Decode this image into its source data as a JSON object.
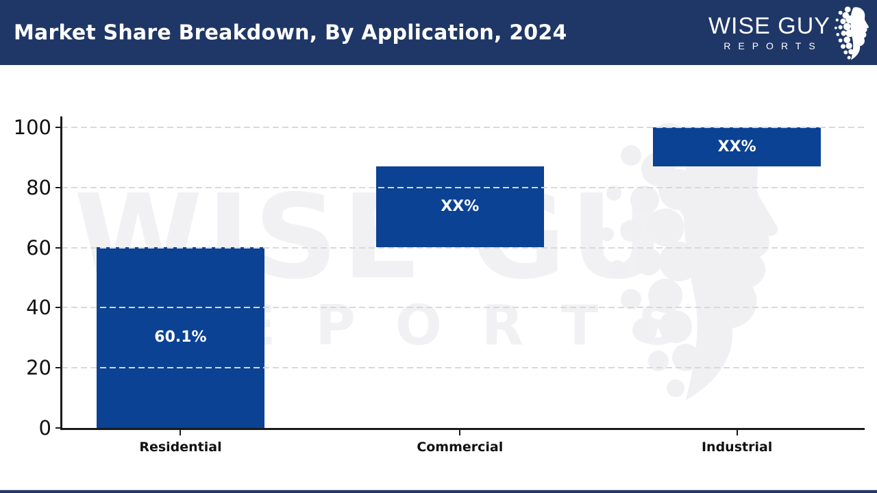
{
  "header": {
    "title": "Market Share Breakdown, By Application, 2024",
    "logo": {
      "line1": "WISE GUY",
      "line2": "REPORTS"
    }
  },
  "watermark": {
    "line1": "WISE GUY",
    "line2": "REPORTS"
  },
  "chart_data": {
    "type": "bar",
    "subtype": "floating-segment-breakdown",
    "title": "Market Share Breakdown, By Application, 2024",
    "categories": [
      "Residential",
      "Commercial",
      "Industrial"
    ],
    "segments": [
      {
        "category": "Residential",
        "start": 0,
        "end": 60.1,
        "label": "60.1%"
      },
      {
        "category": "Commercial",
        "start": 60.1,
        "end": 87,
        "label": "XX%"
      },
      {
        "category": "Industrial",
        "start": 87,
        "end": 100,
        "label": "XX%"
      }
    ],
    "ylim": [
      0,
      100
    ],
    "yticks": [
      0,
      20,
      40,
      60,
      80,
      100
    ],
    "grid": "dashed-horizontal",
    "legend": "none",
    "bar_color": "#0b4294",
    "value_label_color": "#ffffff",
    "axis_color": "#1a1a1a",
    "grid_color": "#d9d9d9"
  },
  "colors": {
    "header_bg": "#1f3767",
    "footer_bg": "#1f3767",
    "page_bg": "#ffffff",
    "watermark": "#f1f1f4"
  }
}
